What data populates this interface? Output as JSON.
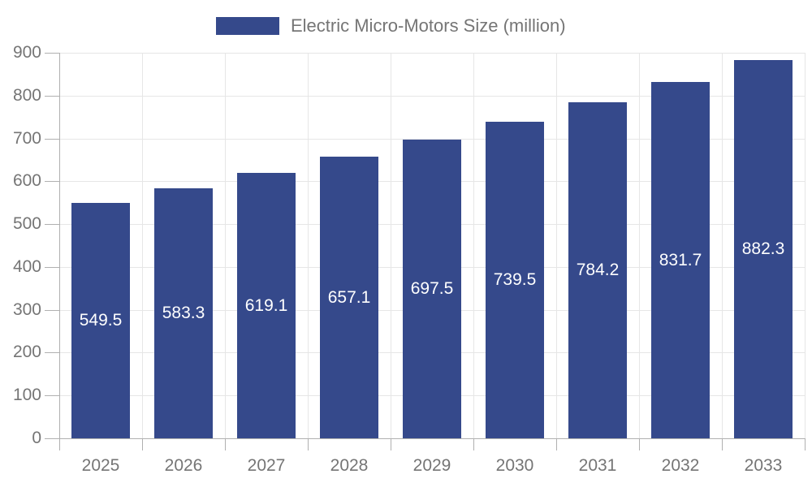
{
  "chart_data": {
    "type": "bar",
    "title": "",
    "legend": {
      "label": "Electric Micro-Motors Size (million)",
      "position": "top"
    },
    "categories": [
      "2025",
      "2026",
      "2027",
      "2028",
      "2029",
      "2030",
      "2031",
      "2032",
      "2033"
    ],
    "values": [
      549.5,
      583.3,
      619.1,
      657.1,
      697.5,
      739.5,
      784.2,
      831.7,
      882.3
    ],
    "value_labels": [
      "549.5",
      "583.3",
      "619.1",
      "657.1",
      "697.5",
      "739.5",
      "784.2",
      "831.7",
      "882.3"
    ],
    "xlabel": "",
    "ylabel": "",
    "ylim": [
      0,
      900
    ],
    "yticks": [
      0,
      100,
      200,
      300,
      400,
      500,
      600,
      700,
      800,
      900
    ],
    "grid": true,
    "value_label_position": "inside-center",
    "colors": {
      "bar": "#35498b",
      "value_label_text": "#ffffff",
      "tick_text": "#757575",
      "legend_text": "#757575",
      "gridline": "#e6e6e6",
      "axis_line": "#b0b0b0"
    }
  }
}
